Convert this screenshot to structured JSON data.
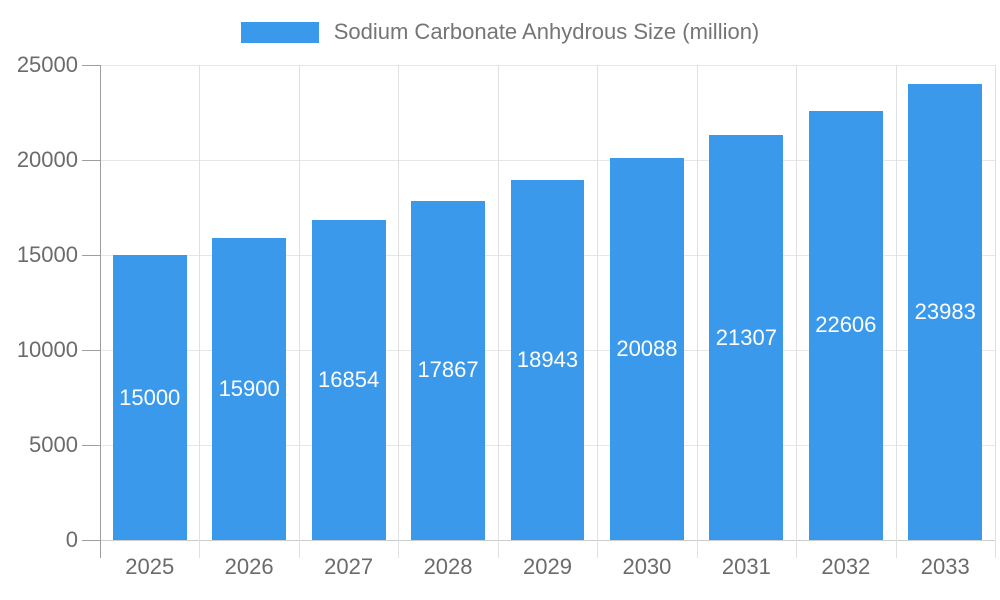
{
  "chart_data": {
    "type": "bar",
    "title": "Sodium Carbonate Anhydrous Size (million)",
    "categories": [
      "2025",
      "2026",
      "2027",
      "2028",
      "2029",
      "2030",
      "2031",
      "2032",
      "2033"
    ],
    "values": [
      15000,
      15900,
      16854,
      17867,
      18943,
      20088,
      21307,
      22606,
      23983
    ],
    "xlabel": "",
    "ylabel": "",
    "ylim": [
      0,
      25000
    ],
    "yticks": [
      0,
      5000,
      10000,
      15000,
      20000,
      25000
    ],
    "grid": "both",
    "legend_position": "top",
    "bar_color": "#3B99EC",
    "bar_label_color": "#FFFFFF",
    "axis_color": "#9E9E9E",
    "grid_color": "#E3E3E3",
    "tick_label_color": "#6B6B6B",
    "legend_text_color": "#757575"
  }
}
